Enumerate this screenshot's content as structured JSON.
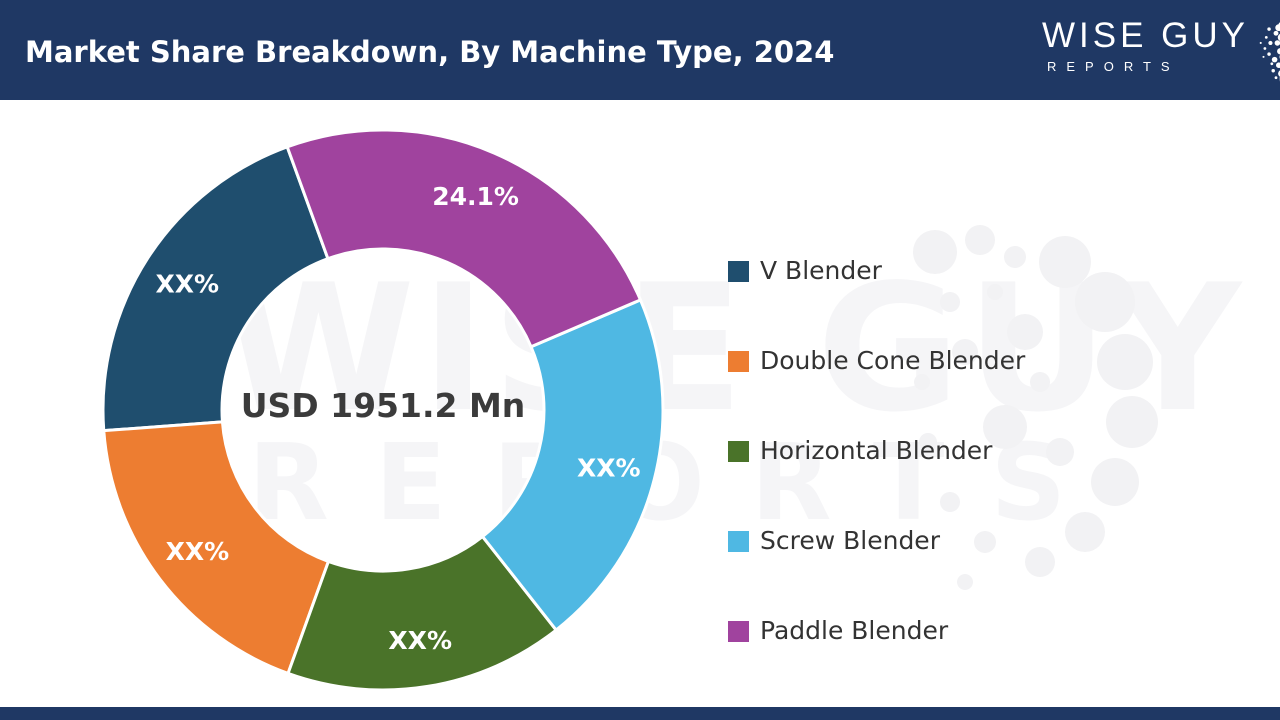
{
  "header": {
    "title": "Market Share Breakdown, By Machine Type, 2024",
    "logo_line1": "WISE GUY",
    "logo_line2": "REPORTS",
    "bg_color": "#1f3864"
  },
  "watermark": {
    "line1": "WISE GUY",
    "line2": "REPORTS"
  },
  "chart_data": {
    "type": "pie",
    "subtype": "donut",
    "title": "Market Share Breakdown, By Machine Type, 2024",
    "center_label": "USD 1951.2 Mn",
    "legend_position": "right",
    "start_angle_deg": 110,
    "direction": "counterclockwise",
    "series": [
      {
        "name": "V Blender",
        "color": "#1f4e6e",
        "value_pct_est": 20.6,
        "label": "XX%"
      },
      {
        "name": "Double Cone Blender",
        "color": "#ed7d31",
        "value_pct_est": 18.3,
        "label": "XX%"
      },
      {
        "name": "Horizontal Blender",
        "color": "#4a7329",
        "value_pct_est": 16.1,
        "label": "XX%"
      },
      {
        "name": "Screw Blender",
        "color": "#4fb8e3",
        "value_pct_est": 20.8,
        "label": "XX%"
      },
      {
        "name": "Paddle Blender",
        "color": "#a0439e",
        "value_pct_est": 24.1,
        "label": "24.1%"
      }
    ]
  }
}
